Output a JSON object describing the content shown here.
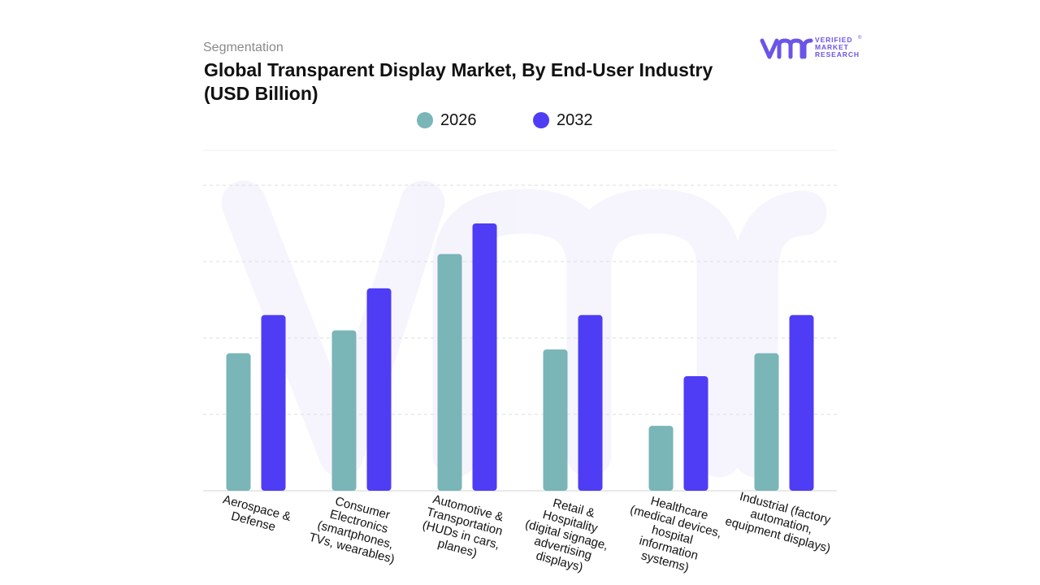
{
  "header": {
    "kicker": "Segmentation",
    "title": "Global Transparent Display Market, By End-User Industry (USD Billion)"
  },
  "brand": {
    "logo_lines": [
      "VERIFIED",
      "MARKET",
      "RESEARCH"
    ],
    "registered_mark": "®",
    "color": "#6a55e8"
  },
  "chart_data": {
    "type": "bar",
    "title": "Global Transparent Display Market, By End-User Industry (USD Billion)",
    "xlabel": "",
    "ylabel": "",
    "grid": true,
    "legend_position": "top-center",
    "ylim": [
      0,
      4
    ],
    "categories": [
      "Aerospace & Defense",
      "Consumer Electronics (smartphones, TVs, wearables)",
      "Automotive & Transportation (HUDs in cars, planes)",
      "Retail & Hospitality (digital signage, advertising displays)",
      "Healthcare (medical devices, hospital information systems)",
      "Industrial (factory automation, equipment displays)"
    ],
    "category_label_lines": [
      [
        "Aerospace &",
        "Defense"
      ],
      [
        "Consumer",
        "Electronics",
        "(smartphones,",
        "TVs, wearables)"
      ],
      [
        "Automotive &",
        "Transportation",
        "(HUDs in cars,",
        "planes)"
      ],
      [
        "Retail &",
        "Hospitality",
        "(digital signage,",
        "advertising",
        "displays)"
      ],
      [
        "Healthcare",
        "(medical devices,",
        "hospital",
        "information",
        "systems)"
      ],
      [
        "Industrial (factory",
        "automation,",
        "equipment displays)"
      ]
    ],
    "series": [
      {
        "name": "2026",
        "color": "#7ab5b8",
        "values": [
          1.8,
          2.1,
          3.1,
          1.85,
          0.85,
          1.8
        ]
      },
      {
        "name": "2032",
        "color": "#4f3cf5",
        "values": [
          2.3,
          2.65,
          3.5,
          2.3,
          1.5,
          2.3
        ]
      }
    ]
  }
}
